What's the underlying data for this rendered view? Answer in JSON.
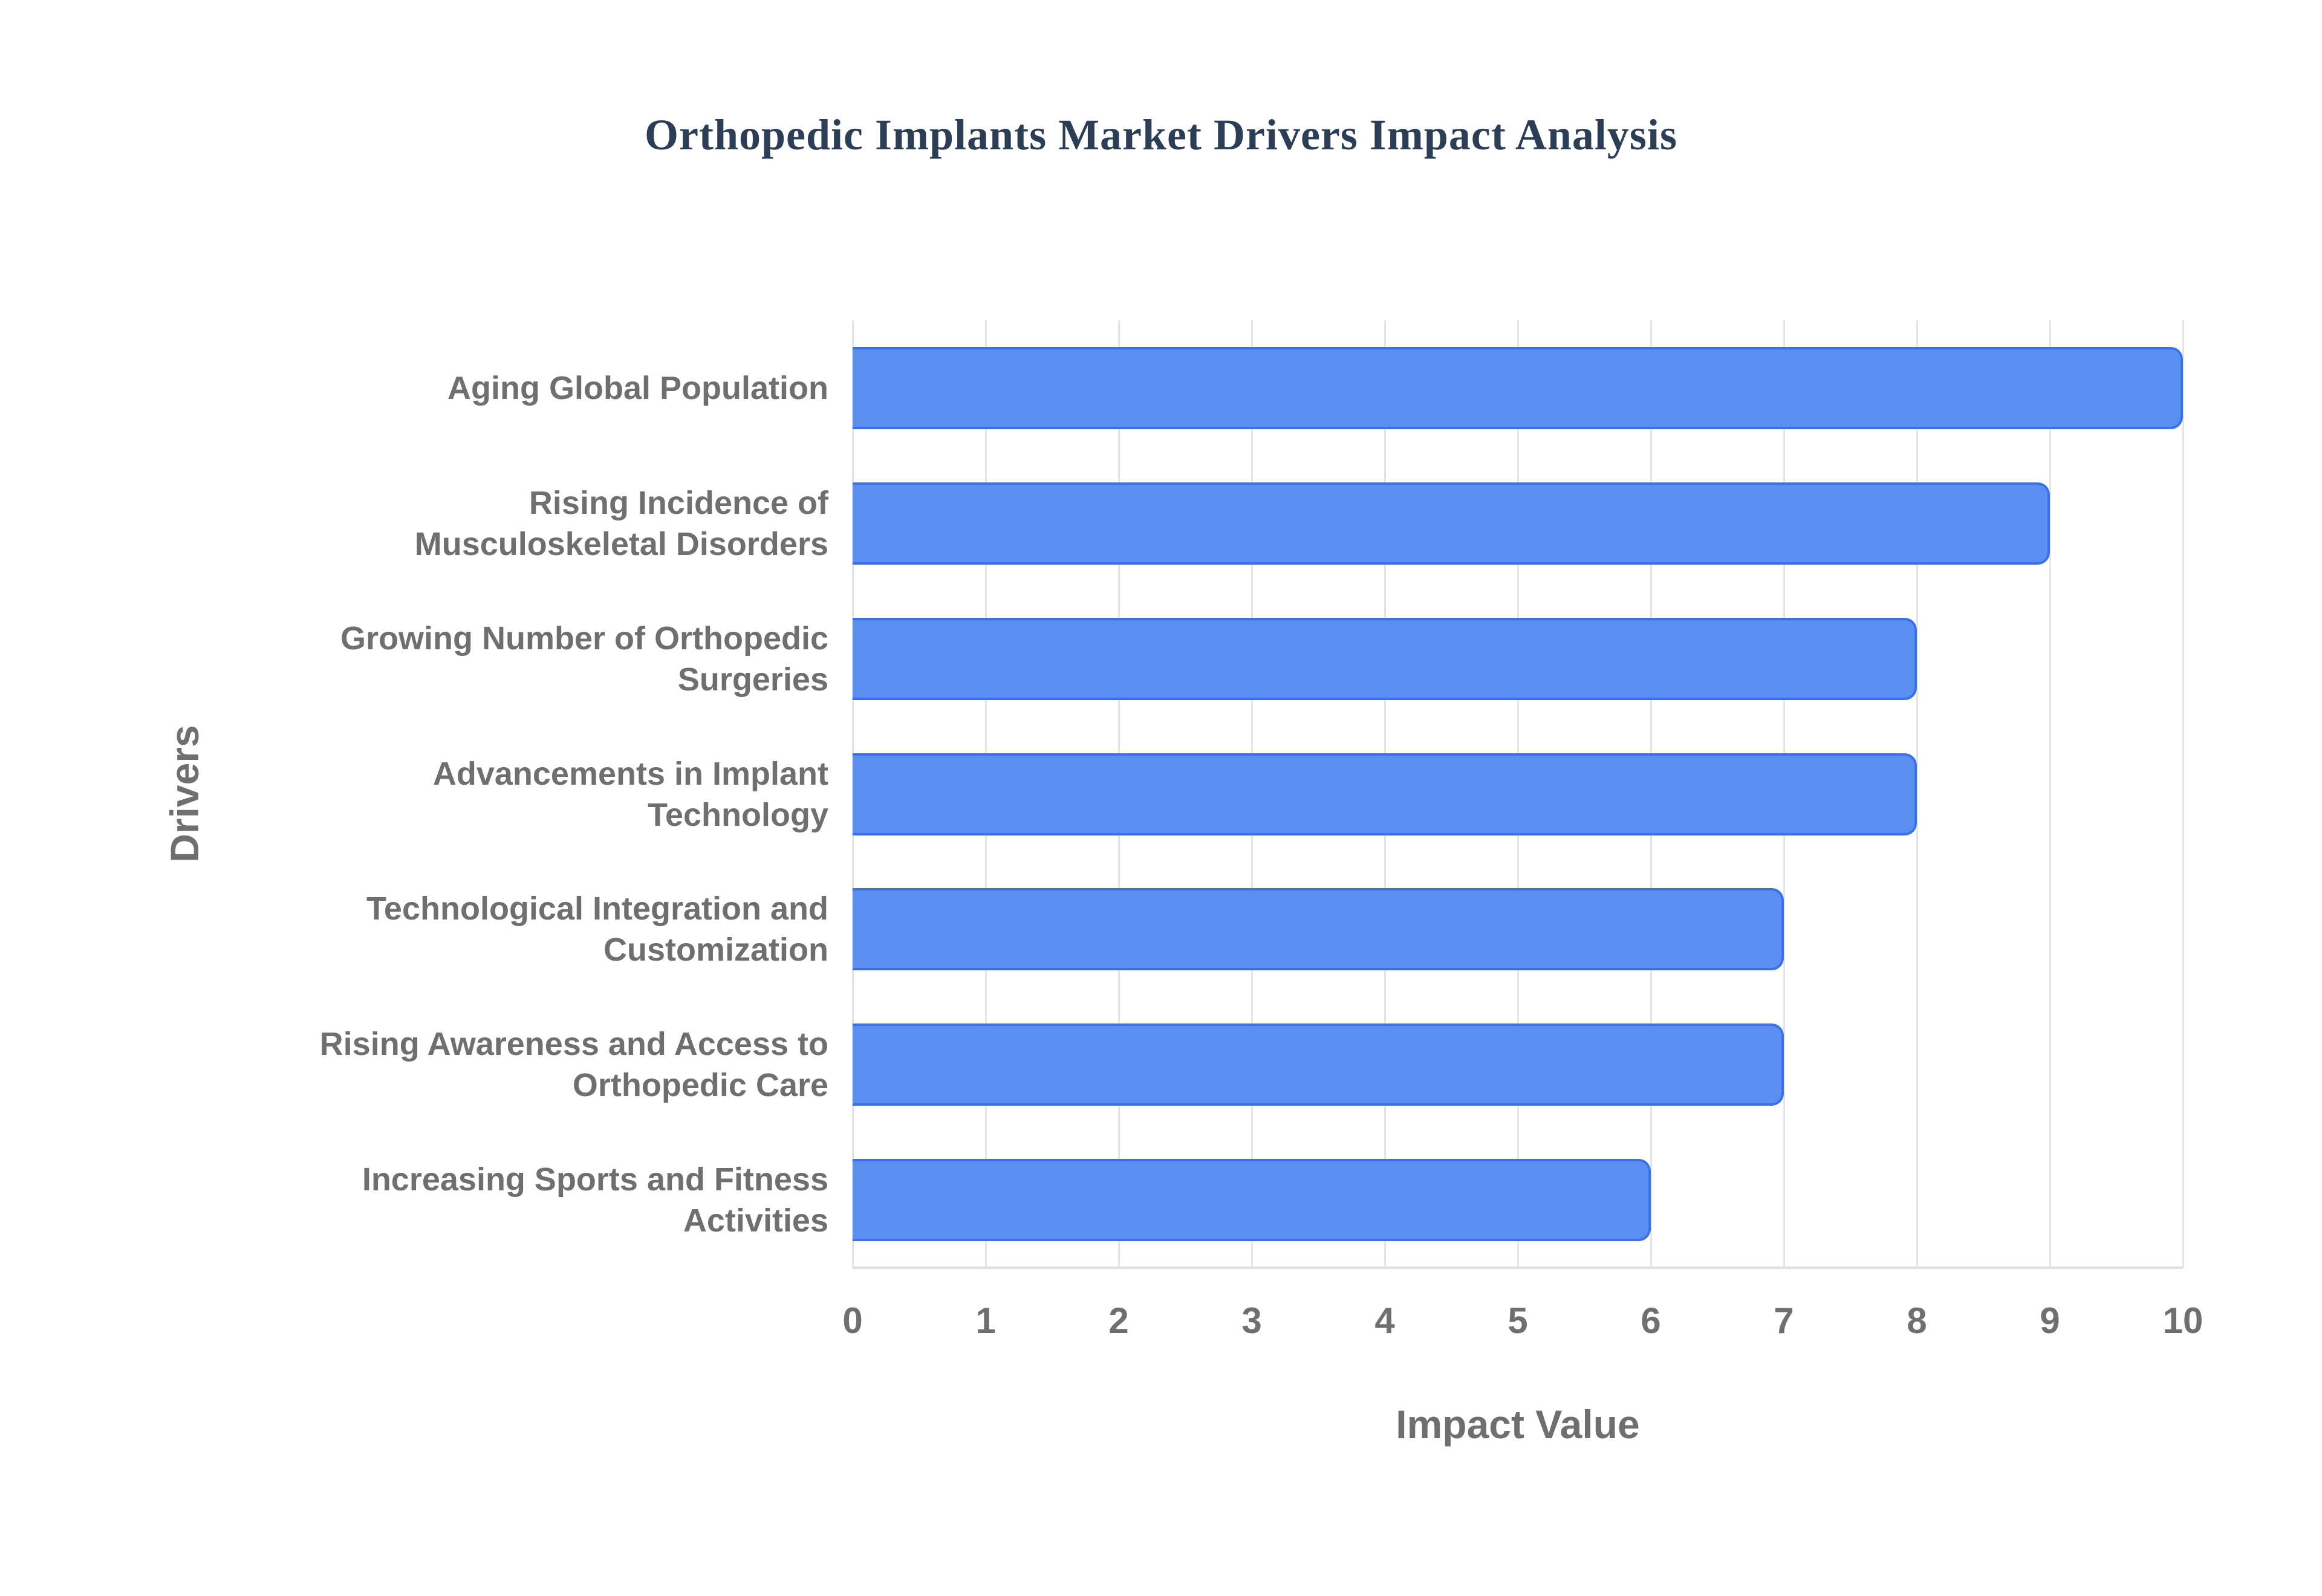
{
  "chart_data": {
    "type": "bar",
    "orientation": "horizontal",
    "title": "Orthopedic Implants Market Drivers Impact Analysis",
    "xlabel": "Impact Value",
    "ylabel": "Drivers",
    "xlim": [
      0,
      10
    ],
    "xticks": [
      0,
      1,
      2,
      3,
      4,
      5,
      6,
      7,
      8,
      9,
      10
    ],
    "grid": "vertical-only",
    "legend": "none",
    "categories": [
      "Aging Global Population",
      "Rising Incidence of Musculoskeletal Disorders",
      "Growing Number of Orthopedic Surgeries",
      "Advancements in Implant Technology",
      "Technological Integration and Customization",
      "Rising Awareness and Access to Orthopedic Care",
      "Increasing Sports and Fitness Activities"
    ],
    "label_lines": [
      [
        "Aging Global Population"
      ],
      [
        "Rising Incidence of",
        "Musculoskeletal Disorders"
      ],
      [
        "Growing Number of Orthopedic",
        "Surgeries"
      ],
      [
        "Advancements in Implant",
        "Technology"
      ],
      [
        "Technological Integration and",
        "Customization"
      ],
      [
        "Rising Awareness and Access to",
        "Orthopedic Care"
      ],
      [
        "Increasing Sports and Fitness",
        "Activities"
      ]
    ],
    "values": [
      10,
      9,
      8,
      8,
      7,
      7,
      6
    ],
    "colors": {
      "bar_fill": "#5A8EF0",
      "bar_border": "#3A70E8",
      "grid": "#E4E4E4",
      "axis_line": "#DDDDDD",
      "tick_text": "#6F6F6F",
      "label_text": "#6F6F6F",
      "title_text": "#2B3E55"
    }
  }
}
